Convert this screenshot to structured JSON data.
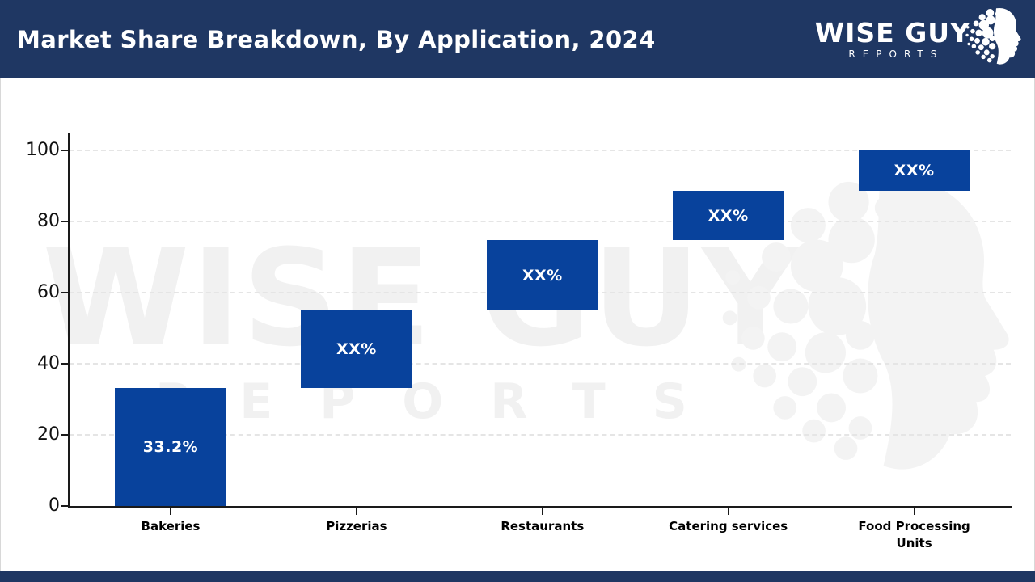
{
  "header": {
    "title": "Market Share Breakdown, By Application, 2024",
    "logo": {
      "line1": "WISE GUY",
      "line2": "REPORTS"
    }
  },
  "watermark": {
    "line1": "WISE GUY",
    "line2": "REPORTS"
  },
  "colors": {
    "header_bg": "#1f3763",
    "bar": "#08429c",
    "watermark": "#f1f1f1",
    "grid": "#e5e5e5",
    "axis": "#1a1a1a"
  },
  "chart_data": {
    "type": "bar",
    "subtype": "floating-waterfall",
    "title": "Market Share Breakdown, By Application, 2024",
    "categories": [
      "Bakeries",
      "Pizzerias",
      "Restaurants",
      "Catering services",
      "Food Processing Units"
    ],
    "segments": [
      {
        "category": "Bakeries",
        "start": 0,
        "end": 33.2,
        "label": "33.2%"
      },
      {
        "category": "Pizzerias",
        "start": 33.2,
        "end": 54.9,
        "label": "XX%"
      },
      {
        "category": "Restaurants",
        "start": 54.9,
        "end": 74.8,
        "label": "XX%"
      },
      {
        "category": "Catering services",
        "start": 74.8,
        "end": 88.6,
        "label": "XX%"
      },
      {
        "category": "Food Processing Units",
        "start": 88.6,
        "end": 100,
        "label": "XX%"
      }
    ],
    "yticks": [
      0,
      20,
      40,
      60,
      80,
      100
    ],
    "ylim": [
      0,
      104.8
    ],
    "xlabel": "",
    "ylabel": "",
    "grid": "horizontal-dashed",
    "legend": "none",
    "bar_color": "#08429c",
    "bar_label_color": "#ffffff"
  }
}
